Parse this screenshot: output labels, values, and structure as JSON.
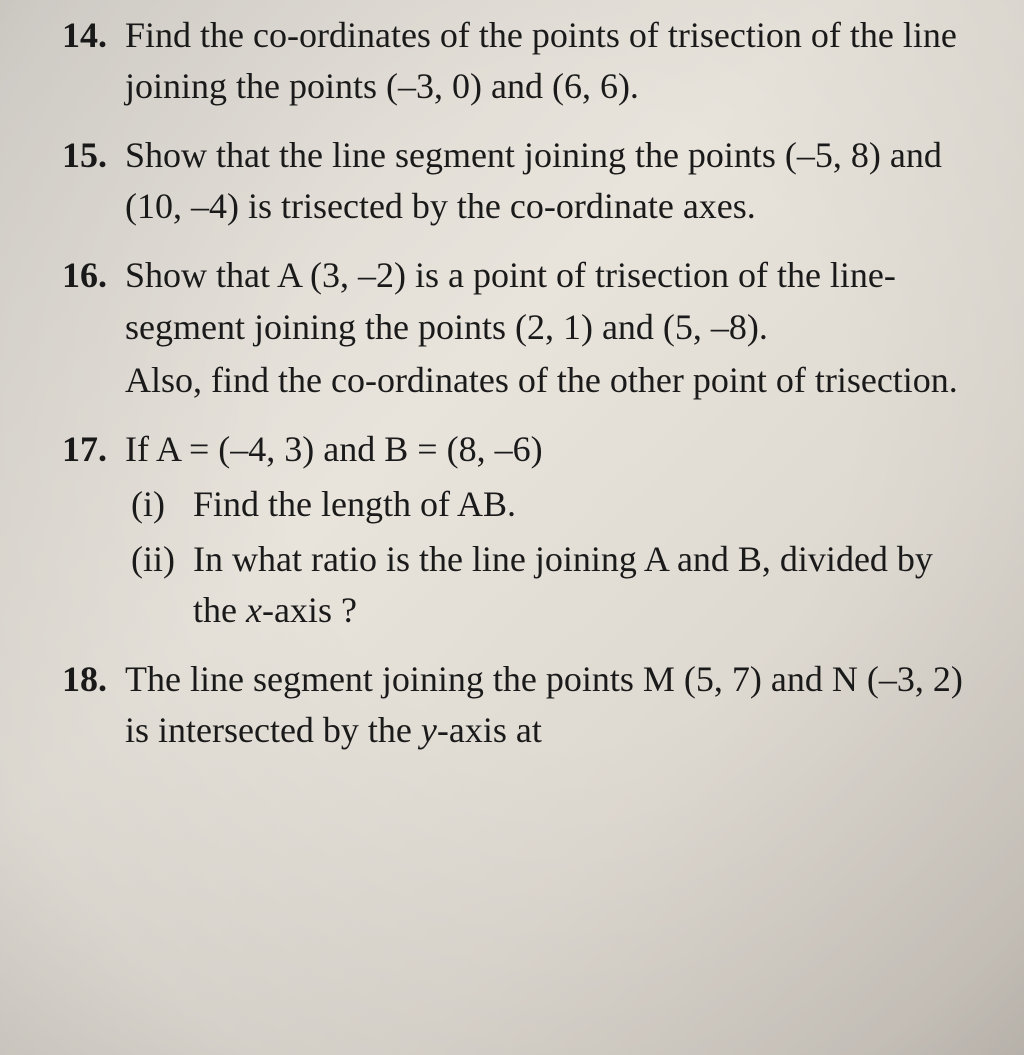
{
  "questions": [
    {
      "num": "14.",
      "text": "Find the co-ordinates of the points of tri­section of the line joining the points (–3, 0) and (6, 6)."
    },
    {
      "num": "15.",
      "text": "Show that the line segment joining the points (–5, 8) and (10, –4) is trisected by the co-ordinate axes."
    },
    {
      "num": "16.",
      "main": "Show that A (3, –2) is a point of trisection of the line-segment joining the points (2, 1) and (5, –8).",
      "also": "Also, find the co-ordinates of the other point of trisection."
    },
    {
      "num": "17.",
      "intro": "If A = (–4, 3) and B = (8, –6)",
      "subs": [
        {
          "n": "(i)",
          "t": "Find the length of AB."
        },
        {
          "n": "(ii)",
          "t_pre": "In what ratio is the line joining A and B, divided by the ",
          "t_italic": "x",
          "t_post": "-axis ?"
        }
      ]
    },
    {
      "num": "18.",
      "t_pre": "The line segment joining the points M (5, 7) and N (–3, 2) is intersected by the ",
      "t_italic": "y",
      "t_post": "-axis at"
    }
  ]
}
